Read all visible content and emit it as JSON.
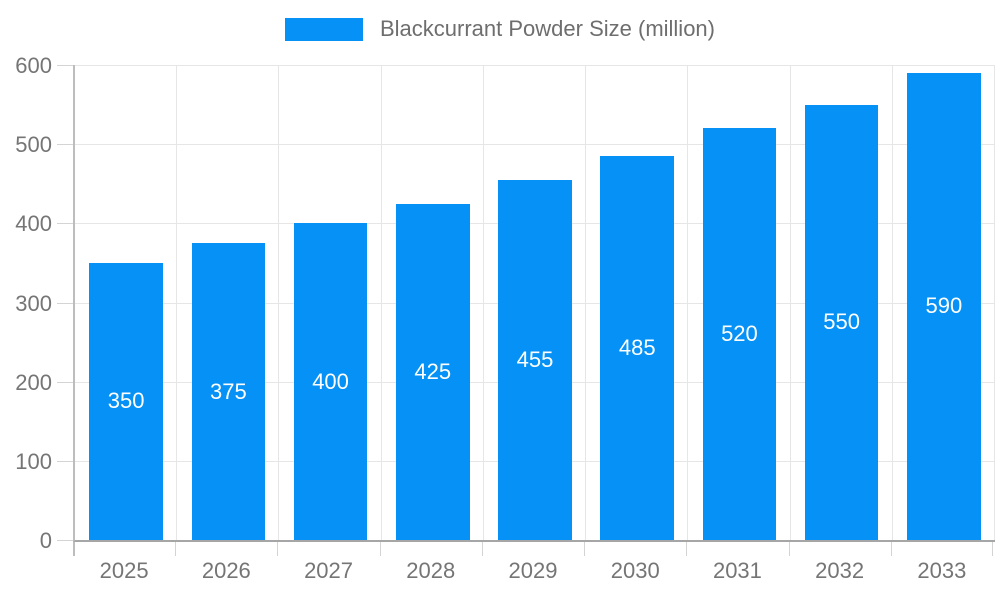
{
  "chart_data": {
    "type": "bar",
    "title": "Blackcurrant Powder Size (million)",
    "categories": [
      "2025",
      "2026",
      "2027",
      "2028",
      "2029",
      "2030",
      "2031",
      "2032",
      "2033"
    ],
    "values": [
      350,
      375,
      400,
      425,
      455,
      485,
      520,
      550,
      590
    ],
    "xlabel": "",
    "ylabel": "",
    "ylim": [
      0,
      600
    ],
    "yticks": [
      0,
      100,
      200,
      300,
      400,
      500,
      600
    ],
    "grid": true,
    "legend_position": "top-center",
    "value_labels": "inside-middle"
  },
  "colors": {
    "bar": "#0591F5",
    "value_label": "#ffffff",
    "legend_text": "#6e6e6e",
    "axis_text": "#757575",
    "x_axis_line": "#a6a6a6",
    "y_axis_line": "#bdbdbd",
    "grid_line": "#e6e6e6",
    "tick_mark": "#d4d4d4",
    "background": "#ffffff"
  }
}
